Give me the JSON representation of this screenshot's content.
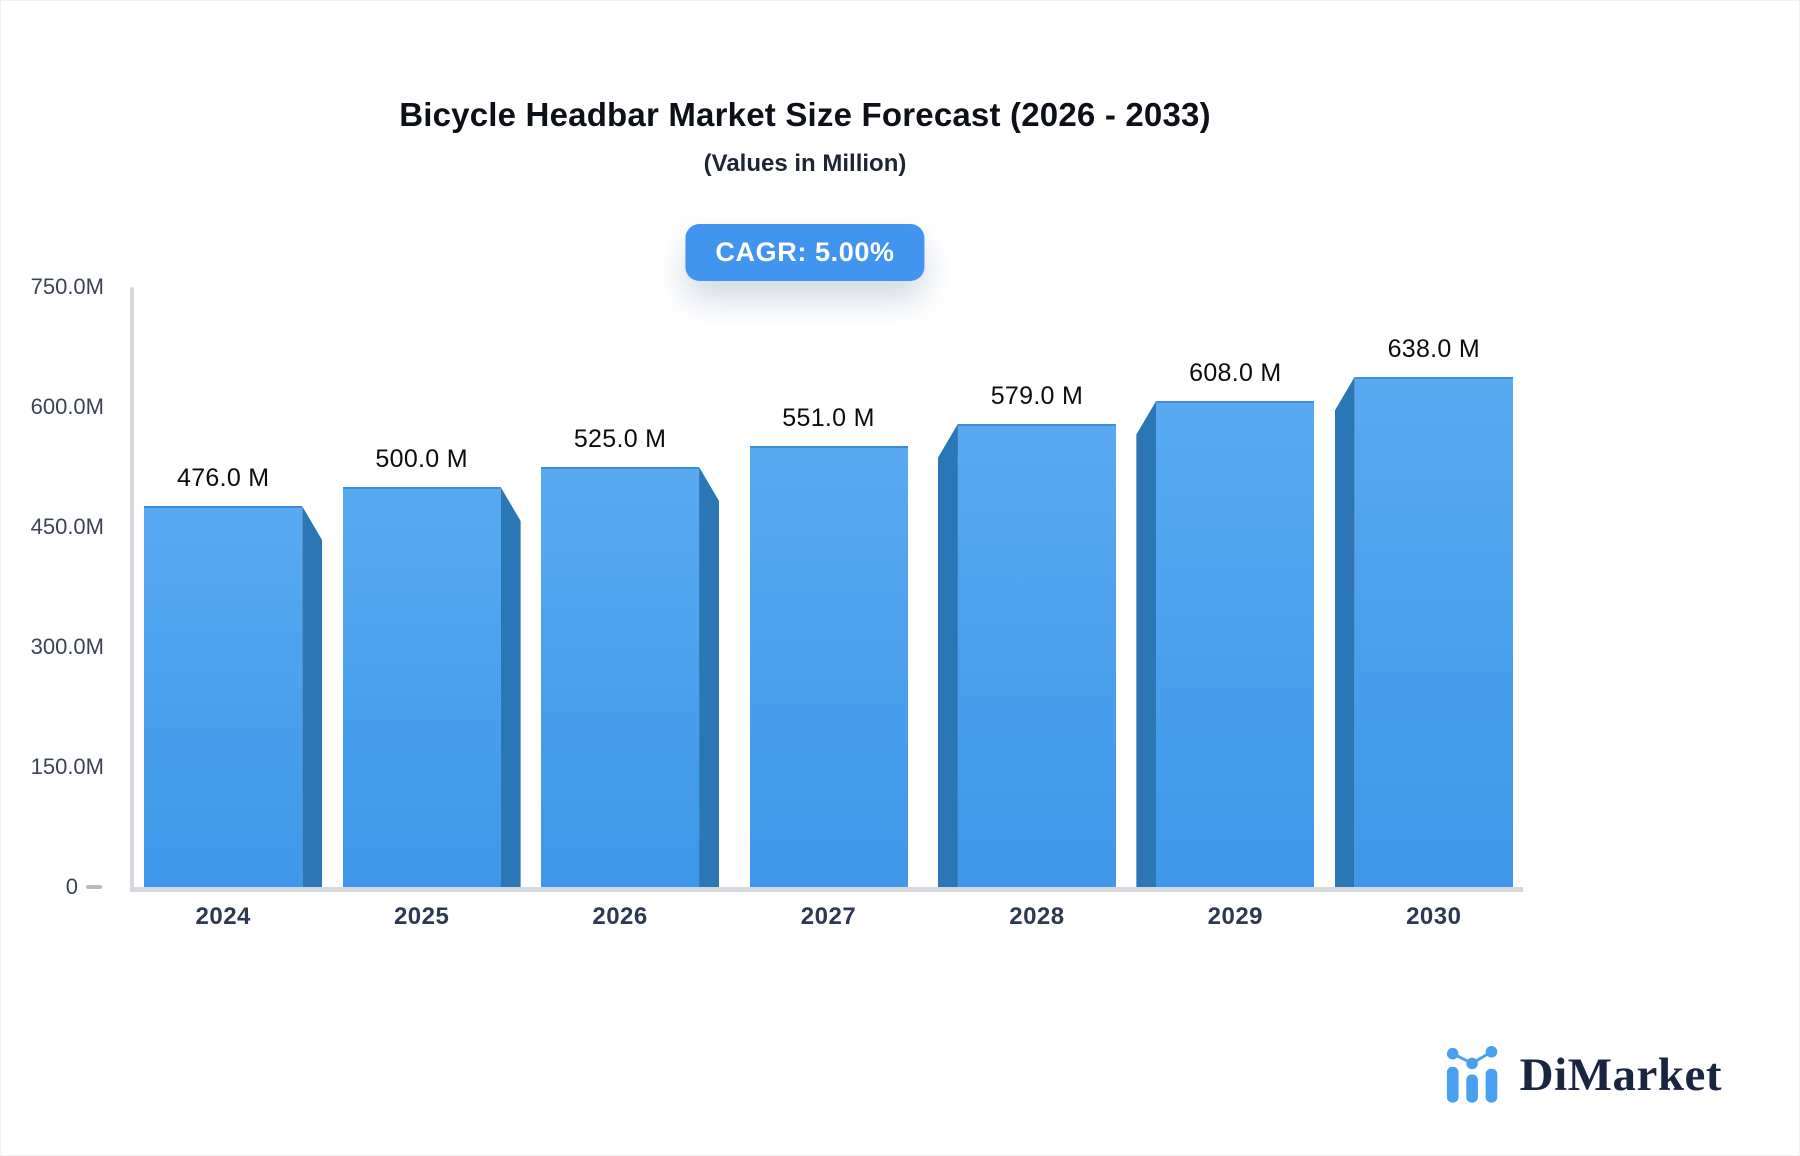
{
  "title": "Bicycle Headbar Market Size Forecast (2026 - 2033)",
  "subtitle": "(Values in Million)",
  "badge": {
    "label": "CAGR: 5.00%",
    "bg_color": "#4195ee"
  },
  "chart_data": {
    "type": "bar",
    "title": "Bicycle Headbar Market Size Forecast (2026 - 2033)",
    "subtitle": "(Values in Million)",
    "xlabel": "",
    "ylabel": "",
    "categories": [
      "2024",
      "2025",
      "2026",
      "2027",
      "2028",
      "2029",
      "2030"
    ],
    "values": [
      476,
      500,
      525,
      551,
      579,
      608,
      638
    ],
    "value_labels": [
      "476.0 M",
      "500.0 M",
      "525.0 M",
      "551.0 M",
      "579.0 M",
      "608.0 M",
      "638.0 M"
    ],
    "unit": "Million",
    "ylim": [
      0,
      750
    ],
    "y_ticks": [
      {
        "label": "750.0M",
        "value": 750
      },
      {
        "label": "600.0M",
        "value": 600
      },
      {
        "label": "450.0M",
        "value": 450
      },
      {
        "label": "300.0M",
        "value": 300
      },
      {
        "label": "150.0M",
        "value": 150
      },
      {
        "label": "0",
        "value": 0
      }
    ],
    "grid": false,
    "legend_position": "none",
    "bar_style": "3d-extruded",
    "colors": {
      "bar_face_top": "#58a9f0",
      "bar_face_bottom": "#3e97ea",
      "bar_side": "#2b77b6",
      "axis": "#d4d7dd"
    }
  },
  "logo": {
    "text": "DiMarket",
    "icon": "mini-bar-line-chart-icon",
    "icon_color": "#4aa0f0",
    "text_color": "#1a2540"
  }
}
